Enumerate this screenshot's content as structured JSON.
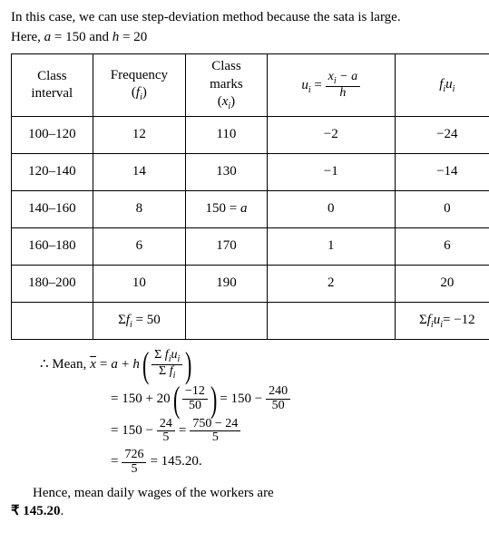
{
  "intro": {
    "line1": "In this case, we can use step-deviation method because the sata is large.",
    "line2_pre": "Here, ",
    "line2_a": "a",
    "line2_aval": " = 150 and ",
    "line2_h": "h",
    "line2_hval": " = 20"
  },
  "headers": {
    "c1a": "Class",
    "c1b": "interval",
    "c2a": "Frequency",
    "c2b_pre": "(",
    "c2b_f": "f",
    "c2b_i": "i",
    "c2b_post": ")",
    "c3a": "Class",
    "c3b": "marks",
    "c3c_pre": "(",
    "c3c_x": "x",
    "c3c_i": "i",
    "c3c_post": ")",
    "c4_lhs_u": "u",
    "c4_lhs_i": "i",
    "c4_eq": " = ",
    "c4_num_x": "x",
    "c4_num_i": "i",
    "c4_num_rest": " − a",
    "c4_den": "h",
    "c5_f": "f",
    "c5_fi": "i",
    "c5_u": "u",
    "c5_ui": "i"
  },
  "rows": [
    {
      "interval": "100–120",
      "f": "12",
      "x": "110",
      "u": "−2",
      "fu": "−24"
    },
    {
      "interval": "120–140",
      "f": "14",
      "x": "130",
      "u": "−1",
      "fu": "−14"
    },
    {
      "interval": "140–160",
      "f": "8",
      "x": "150 = a",
      "u": "0",
      "fu": "0"
    },
    {
      "interval": "160–180",
      "f": "6",
      "x": "170",
      "u": "1",
      "fu": "6"
    },
    {
      "interval": "180–200",
      "f": "10",
      "x": "190",
      "u": "2",
      "fu": "20"
    }
  ],
  "totals": {
    "f_pre": "Σ",
    "f_f": "f",
    "f_i": "i",
    "f_val": " = 50",
    "fu_pre": "Σ",
    "fu_f": "f",
    "fu_fi": "i",
    "fu_u": "u",
    "fu_ui": "i",
    "fu_val": "= −12"
  },
  "mean": {
    "therefore": "∴ Mean, ",
    "xbar": "x",
    "eq": " = ",
    "a": "a",
    "plus": " + ",
    "h": "h",
    "frac1_num": "Σ fᵢuᵢ",
    "frac1_num_a": "Σ ",
    "frac1_num_f": "f",
    "frac1_num_fi": "i",
    "frac1_num_u": "u",
    "frac1_num_ui": "i",
    "frac1_den_a": "Σ ",
    "frac1_den_f": "f",
    "frac1_den_fi": "i",
    "line2_a": "= 150 + 20",
    "line2_num": "−12",
    "line2_den": "50",
    "line2_b": " = 150 − ",
    "line2_num2": "240",
    "line2_den2": "50",
    "line3_a": "= 150 − ",
    "line3_num": "24",
    "line3_den": "5",
    "line3_b": " = ",
    "line3_num2": "750 − 24",
    "line3_den2": "5",
    "line4_a": "= ",
    "line4_num": "726",
    "line4_den": "5",
    "line4_b": " = 145.20."
  },
  "conclusion": {
    "text1": "Hence, mean daily wages of the workers are",
    "rs": "₹ ",
    "amount": "145.20",
    "period": "."
  }
}
